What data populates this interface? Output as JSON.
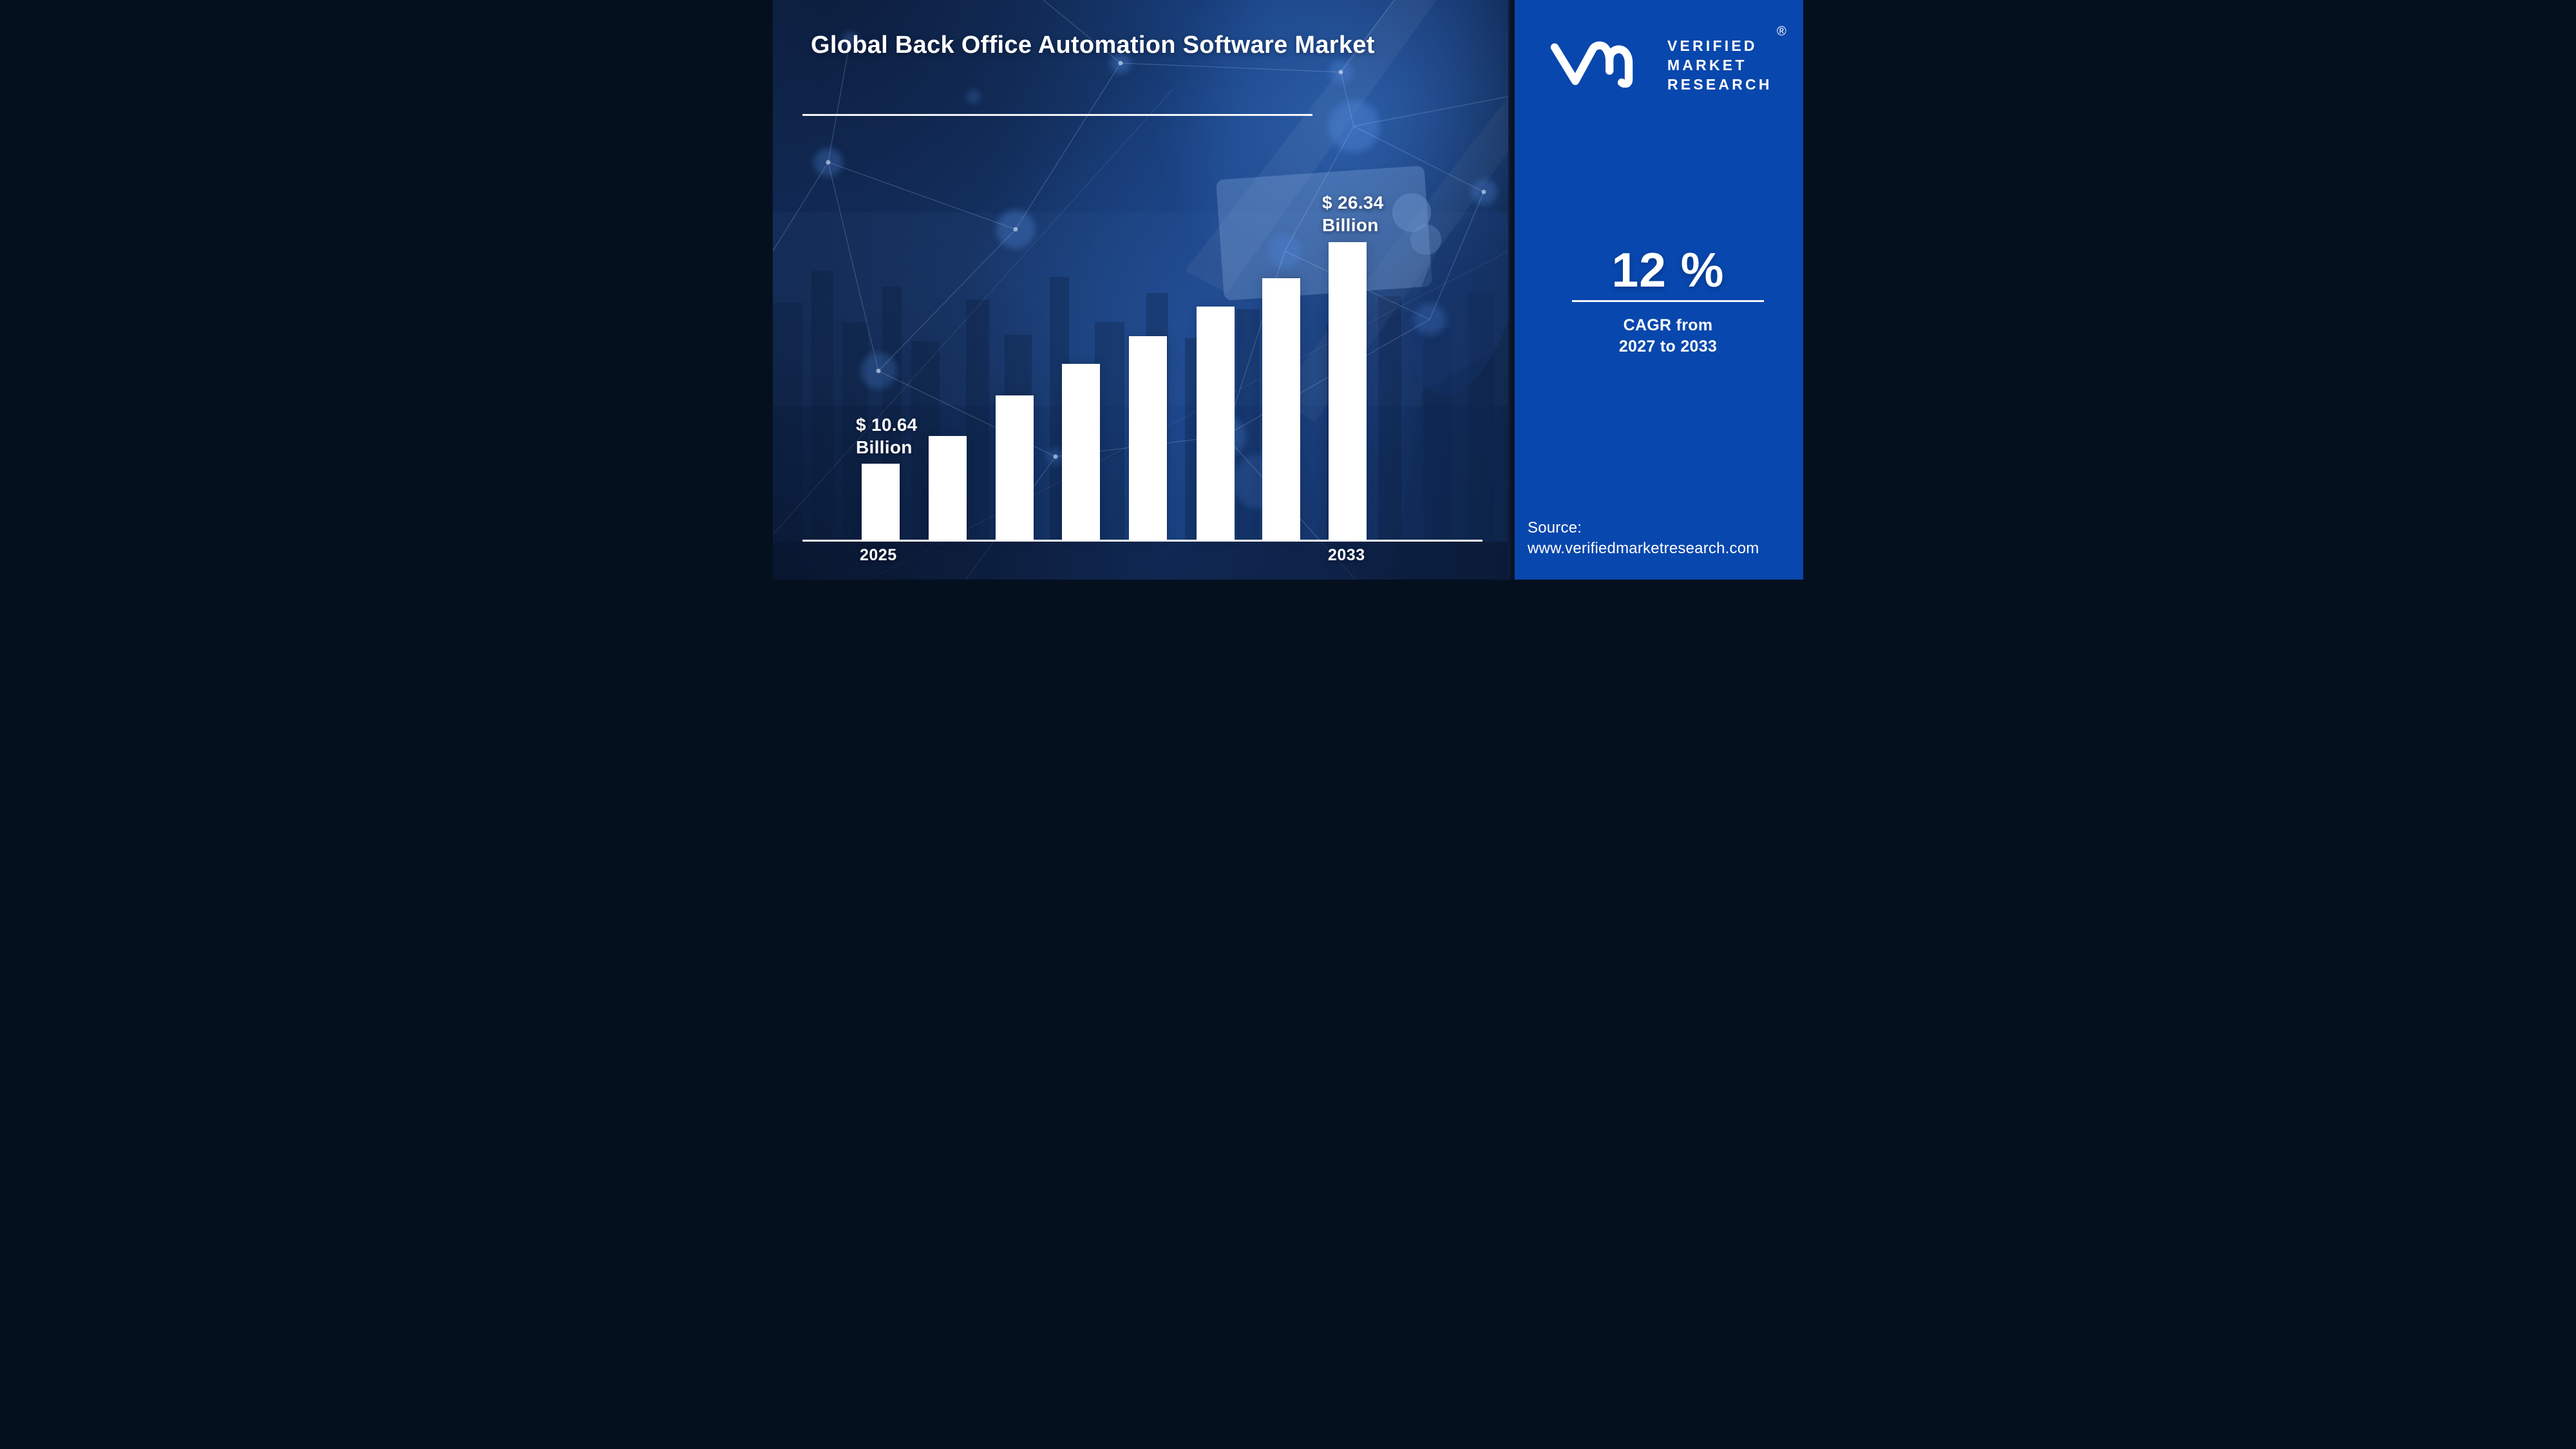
{
  "meta": {
    "brand_accent": "#0847ad",
    "background_navy": "#143264",
    "bar_color": "#ffffff",
    "text_color": "#ffffff"
  },
  "header": {
    "title": "Global Back Office Automation Software Market"
  },
  "logo": {
    "brand_lines": [
      "VERIFIED",
      "MARKET",
      "RESEARCH"
    ],
    "registered_mark": "®"
  },
  "stats": {
    "cagr_value": "12 %",
    "cagr_caption_line1": "CAGR from",
    "cagr_caption_line2": "2027 to 2033"
  },
  "source": {
    "label": "Source:",
    "url": "www.verifiedmarketresearch.com"
  },
  "chart_data": {
    "type": "bar",
    "title": "Global Back Office Automation Software Market",
    "xlabel": "",
    "ylabel": "",
    "categories": [
      "2025",
      "",
      "",
      "",
      "",
      "",
      "",
      "2033"
    ],
    "values_billion_usd": [
      10.64,
      null,
      null,
      null,
      null,
      null,
      null,
      26.34
    ],
    "bar_height_ratios": [
      0.255,
      0.349,
      0.485,
      0.591,
      0.684,
      0.783,
      0.879,
      1.0
    ],
    "annotations": {
      "first_bar": "$ 10.64 Billion",
      "last_bar": "$ 26.34 Billion"
    },
    "x_first_tick": "2025",
    "x_last_tick": "2033",
    "bar_color": "#ffffff",
    "axis_color": "#ffffff",
    "grid": false,
    "legend": false
  }
}
